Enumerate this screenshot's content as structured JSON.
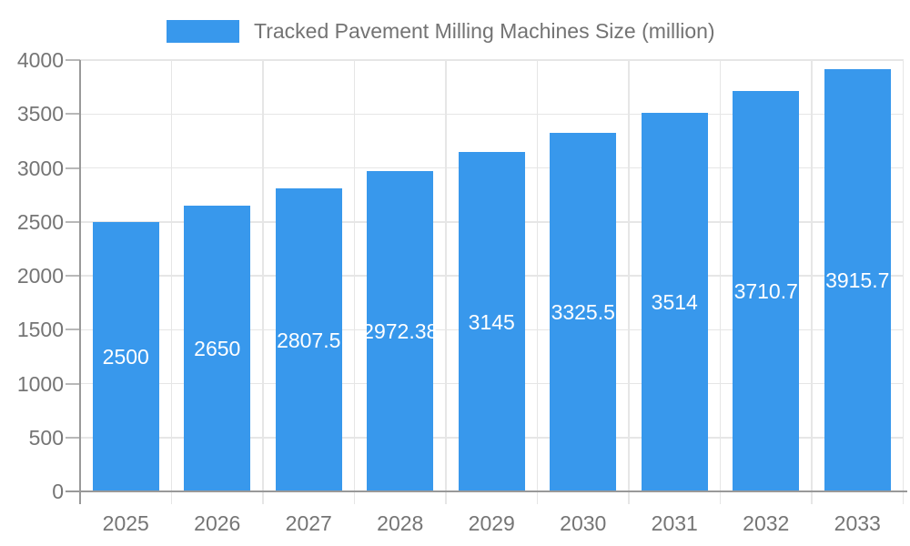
{
  "legend": {
    "label": "Tracked Pavement Milling Machines Size (million)"
  },
  "chart_data": {
    "type": "bar",
    "title": "",
    "categories": [
      "2025",
      "2026",
      "2027",
      "2028",
      "2029",
      "2030",
      "2031",
      "2032",
      "2033"
    ],
    "series": [
      {
        "name": "Tracked Pavement Milling Machines Size (million)",
        "values": [
          2500,
          2650,
          2807.5,
          2972.38,
          3145,
          3325.5,
          3514,
          3710.7,
          3915.7
        ],
        "color": "#3898EC"
      }
    ],
    "xlabel": "",
    "ylabel": "",
    "ylim": [
      0,
      4000
    ],
    "y_ticks": [
      0,
      500,
      1000,
      1500,
      2000,
      2500,
      3000,
      3500,
      4000
    ],
    "grid": true,
    "legend_position": "top",
    "data_labels": "inside-center",
    "data_label_color": "#ffffff"
  },
  "colors": {
    "bar": "#3898EC",
    "grid": "#e6e6e6",
    "axis": "#999999",
    "tick": "#b8b8b8",
    "tick_text": "#757575",
    "legend_text": "#737373",
    "background": "#ffffff"
  }
}
